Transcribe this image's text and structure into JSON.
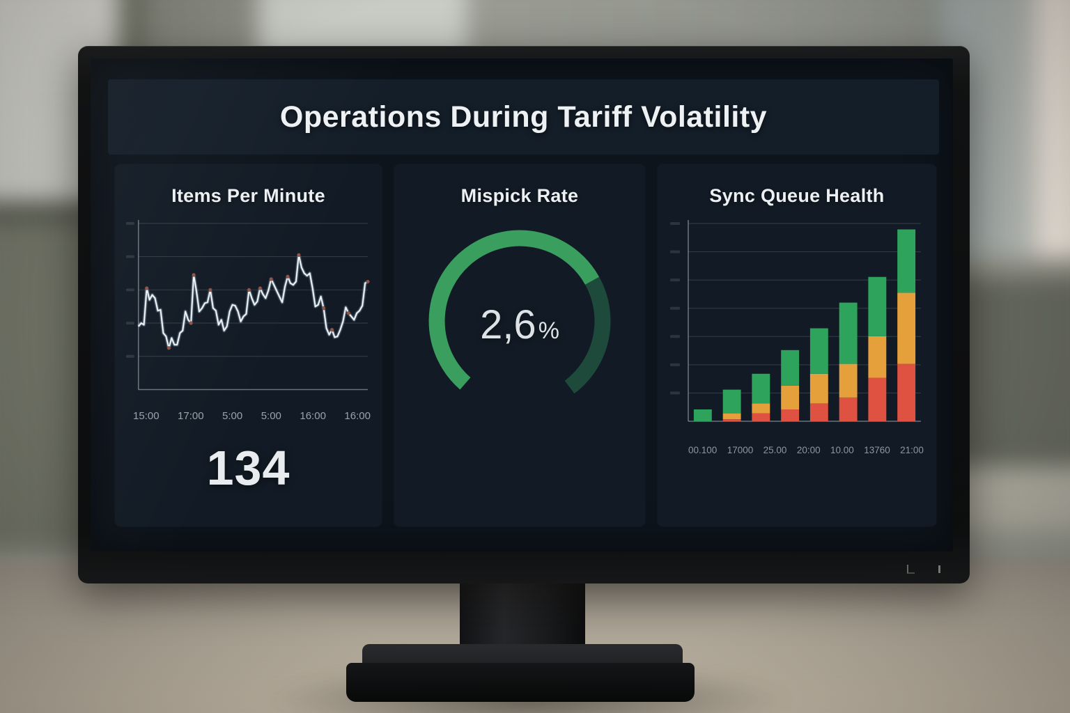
{
  "dashboard": {
    "title": "Operations During Tariff Volatility",
    "panels": {
      "items_per_minute": {
        "title": "Items Per Minute",
        "big_number": "134"
      },
      "mispick_rate": {
        "title": "Mispick Rate",
        "value": "2,6",
        "suffix": "%"
      },
      "sync_queue_health": {
        "title": "Sync Queue Health"
      }
    }
  },
  "chart_data": [
    {
      "type": "line",
      "title": "Items Per Minute",
      "x_labels": [
        "15:00",
        "17:00",
        "5:00",
        "5:00",
        "16:00",
        "16:00"
      ],
      "ylabel": "",
      "y_tick_labels": "present but illegible",
      "ylim": [
        0,
        100
      ],
      "grid": true,
      "current_value": 134,
      "y_normalized": [
        38,
        40,
        39,
        61,
        54,
        57,
        55,
        47.5,
        48,
        34,
        32,
        25,
        31,
        27,
        27,
        34,
        35.5,
        47,
        42,
        40,
        69,
        59,
        47,
        49,
        52,
        52.5,
        60,
        49,
        47.5,
        39,
        42,
        35.5,
        38,
        47,
        51,
        50.5,
        47,
        41,
        44,
        45.5,
        60,
        55,
        51,
        53,
        61,
        57.5,
        55,
        59.5,
        66.5,
        63,
        59.5,
        56,
        52.5,
        62,
        68,
        64,
        63,
        65,
        81,
        73.5,
        70,
        68.5,
        70,
        61,
        50,
        51,
        56,
        49,
        37,
        33,
        36,
        31.5,
        32,
        36,
        41,
        49.5,
        46,
        44,
        42,
        46,
        47.5,
        50.5,
        64,
        65
      ],
      "marker_indices": [
        3,
        11,
        19,
        20,
        26,
        40,
        44,
        48,
        54,
        58,
        67,
        70,
        76,
        83
      ],
      "line_color": "#f2f7fb",
      "marker_color": "#94554a"
    },
    {
      "type": "gauge",
      "title": "Mispick Rate",
      "value_text": "2,6%",
      "value_percent": 2.6,
      "arc_start_deg": 221,
      "arc_end_deg": 503,
      "arc_split_deg": 421,
      "ring_radius": 119,
      "ring_width": 23,
      "filled_color": "#3a9f5e",
      "remainder_color": "#1d4a3a"
    },
    {
      "type": "stacked_bar",
      "title": "Sync Queue Health",
      "x_labels": [
        "00.100",
        "17000",
        "25.00",
        "20:00",
        "10.00",
        "13760",
        "21:00"
      ],
      "categories": [
        "bar1",
        "bar2",
        "bar3",
        "bar4",
        "bar5",
        "bar6",
        "bar7",
        "bar8"
      ],
      "series": [
        {
          "name": "red",
          "color": "#df5140",
          "values": [
            0,
            1,
            4,
            6,
            9,
            12,
            22,
            29
          ]
        },
        {
          "name": "amber",
          "color": "#e5a03b",
          "values": [
            0,
            3,
            5,
            12,
            15,
            17,
            21,
            36
          ]
        },
        {
          "name": "green",
          "color": "#2da35c",
          "values": [
            6,
            12,
            15,
            18,
            23,
            31,
            30,
            32
          ]
        }
      ],
      "ylim": [
        0,
        100
      ],
      "y_tick_labels": "present but illegible",
      "grid": true,
      "legend": "none"
    }
  ],
  "monitor": {
    "chin_indicators": [
      "label-mark",
      "power-led"
    ]
  }
}
